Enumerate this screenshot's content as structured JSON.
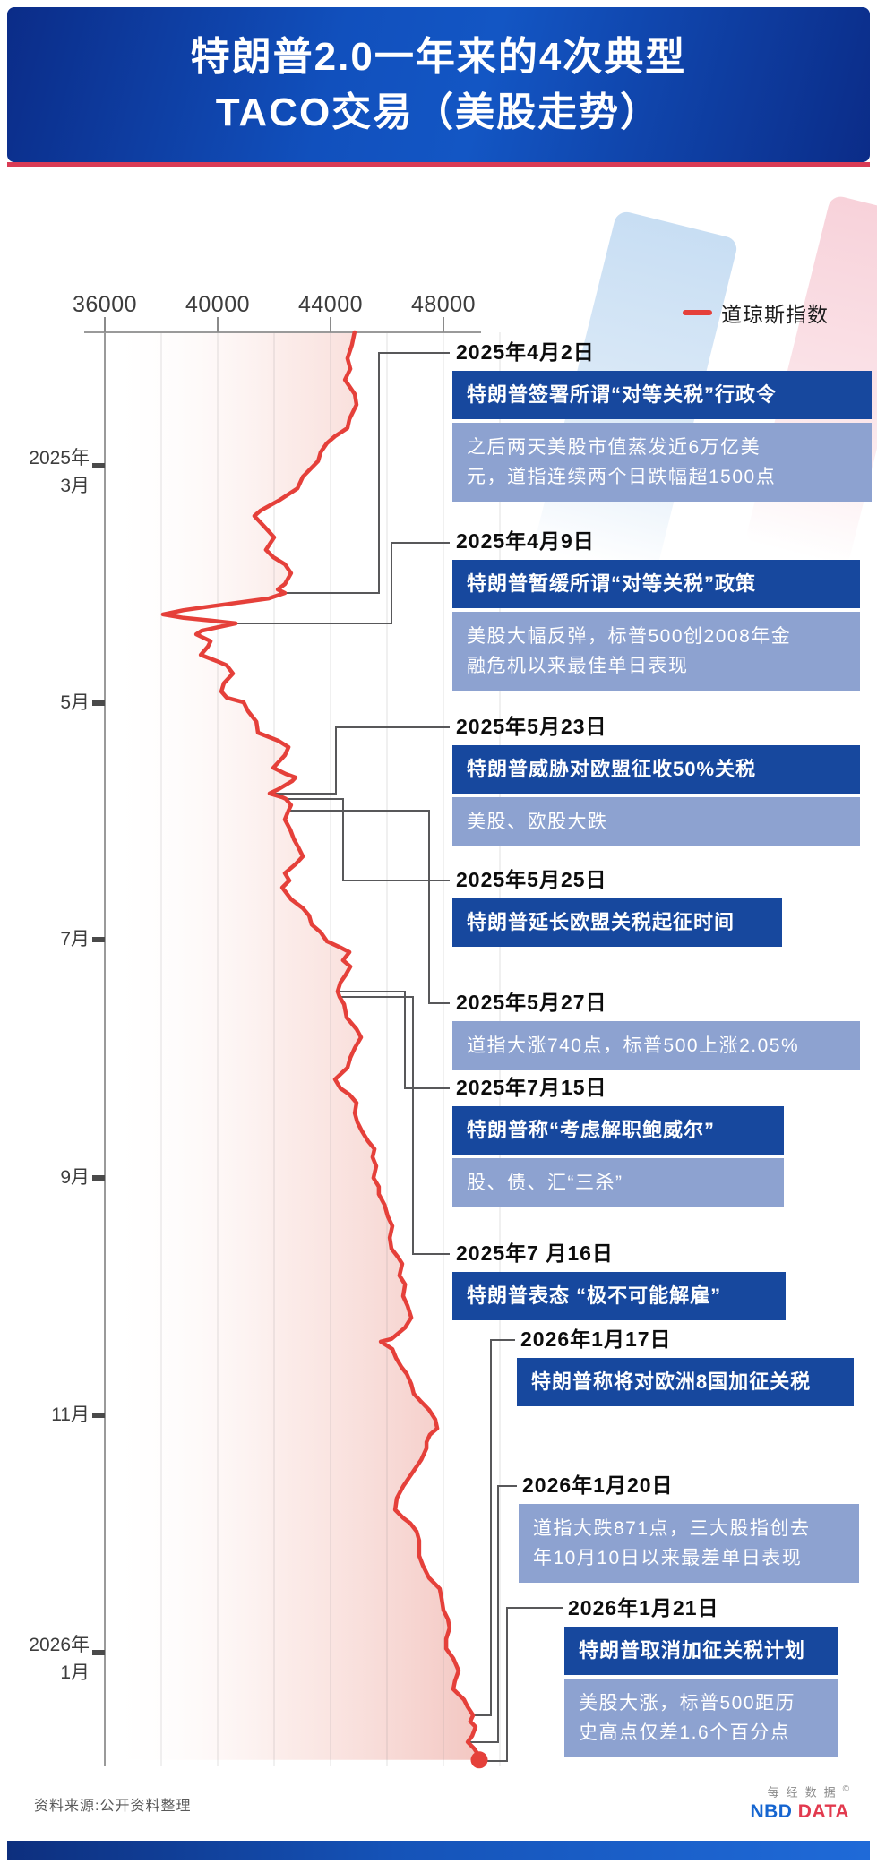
{
  "header": {
    "title_line1": "特朗普2.0一年来的4次典型",
    "title_line2": "TACO交易（美股走势）"
  },
  "legend": {
    "label": "道琼斯指数"
  },
  "axis": {
    "x_ticks": [
      "36000",
      "40000",
      "44000",
      "48000"
    ],
    "months": [
      "2025年\n3月",
      "5月",
      "7月",
      "9月",
      "11月",
      "2026年\n1月"
    ]
  },
  "annotations": [
    {
      "date": "2025年4月2日",
      "headline": "特朗普签署所谓“对等关税”行政令",
      "body": "之后两天美股市值蒸发近6万亿美\n元，道指连续两个日跌幅超1500点"
    },
    {
      "date": "2025年4月9日",
      "headline": "特朗普暂缓所谓“对等关税”政策",
      "body": "美股大幅反弹，标普500创2008年金\n融危机以来最佳单日表现"
    },
    {
      "date": "2025年5月23日",
      "headline": "特朗普威胁对欧盟征收50%关税",
      "body": "美股、欧股大跌"
    },
    {
      "date": "2025年5月25日",
      "headline": "特朗普延长欧盟关税起征时间"
    },
    {
      "date": "2025年5月27日",
      "body": "道指大涨740点，标普500上涨2.05%"
    },
    {
      "date": "2025年7月15日",
      "headline": "特朗普称“考虑解职鲍威尔”",
      "body": "股、债、汇“三杀”"
    },
    {
      "date": "2025年7 月16日",
      "headline": "特朗普表态 “极不可能解雇”"
    },
    {
      "date": "2026年1月17日",
      "headline": "特朗普称将对欧洲8国加征关税"
    },
    {
      "date": "2026年1月20日",
      "body": "道指大跌871点，三大股指创去\n年10月10日以来最差单日表现"
    },
    {
      "date": "2026年1月21日",
      "headline": "特朗普取消加征关税计划",
      "body": "美股大涨，标普500距历\n史高点仅差1.6个百分点"
    }
  ],
  "footer": {
    "source": "资料来源:公开资料整理",
    "logo_cn": "每经数据",
    "logo_mark": "©",
    "logo_en_blue": "NBD",
    "logo_en_red": "DATA"
  },
  "colors": {
    "header_blue": "#1150bd",
    "underline_red": "#d93b55",
    "headline_box_blue": "#17489e",
    "body_box_blue": "#8da2d0",
    "line_red": "#e5403a",
    "area_pink": "#f5c8c3",
    "logo_blue": "#1565d0",
    "logo_red": "#e23a4e"
  },
  "chart_data": {
    "type": "line",
    "title": "特朗普2.0一年来的4次典型TACO交易（美股走势）",
    "orientation": "vertical-time",
    "series_name": "道琼斯指数",
    "value_axis": {
      "ticks": [
        36000,
        40000,
        44000,
        48000
      ],
      "position": "top"
    },
    "time_axis": {
      "start": "2025-01-25",
      "unit": "days-from-start",
      "tick_labels": [
        "2025年3月",
        "5月",
        "7月",
        "9月",
        "11月",
        "2026年1月"
      ],
      "tick_days": [
        34,
        96,
        157,
        219,
        280,
        341
      ]
    },
    "points": [
      [
        0,
        44850
      ],
      [
        3.2,
        44760
      ],
      [
        6.7,
        44600
      ],
      [
        9.4,
        44700
      ],
      [
        12.2,
        44510
      ],
      [
        15.9,
        44860
      ],
      [
        18.6,
        44920
      ],
      [
        22.3,
        44670
      ],
      [
        24.6,
        44600
      ],
      [
        26.7,
        44160
      ],
      [
        28.5,
        43870
      ],
      [
        30.8,
        43650
      ],
      [
        33.1,
        43560
      ],
      [
        37.1,
        43020
      ],
      [
        40.1,
        42830
      ],
      [
        43,
        42220
      ],
      [
        45.8,
        41520
      ],
      [
        47.2,
        41300
      ],
      [
        49.9,
        41650
      ],
      [
        52.7,
        42000
      ],
      [
        55.9,
        41710
      ],
      [
        57.8,
        41970
      ],
      [
        59.6,
        42380
      ],
      [
        61.9,
        42600
      ],
      [
        64.7,
        42380
      ],
      [
        66.1,
        42130
      ],
      [
        67,
        42380
      ],
      [
        68.4,
        41810
      ],
      [
        70.4,
        39780
      ],
      [
        71.4,
        38790
      ],
      [
        72.5,
        38060
      ],
      [
        73.4,
        38790
      ],
      [
        74.1,
        39780
      ],
      [
        74.8,
        40640
      ],
      [
        76.7,
        39430
      ],
      [
        77.6,
        39240
      ],
      [
        79.4,
        39750
      ],
      [
        80.8,
        39650
      ],
      [
        82.9,
        39400
      ],
      [
        84.5,
        39970
      ],
      [
        85.6,
        40320
      ],
      [
        87.7,
        40540
      ],
      [
        90.2,
        40220
      ],
      [
        92.3,
        40130
      ],
      [
        93.9,
        40320
      ],
      [
        95.1,
        40920
      ],
      [
        97.4,
        41080
      ],
      [
        100.1,
        41370
      ],
      [
        102.9,
        41430
      ],
      [
        105,
        42160
      ],
      [
        106.6,
        42510
      ],
      [
        108.7,
        42380
      ],
      [
        111.9,
        41970
      ],
      [
        113.5,
        42410
      ],
      [
        114.4,
        42760
      ],
      [
        115.3,
        42640
      ],
      [
        117.4,
        42160
      ],
      [
        118.5,
        41840
      ],
      [
        119.5,
        42290
      ],
      [
        119.9,
        42410
      ],
      [
        121.5,
        42600
      ],
      [
        122.9,
        42510
      ],
      [
        125.2,
        42380
      ],
      [
        127.8,
        42570
      ],
      [
        130.3,
        42700
      ],
      [
        132.4,
        42860
      ],
      [
        134.7,
        43020
      ],
      [
        136.7,
        42760
      ],
      [
        139,
        42380
      ],
      [
        140.9,
        42540
      ],
      [
        142.7,
        42290
      ],
      [
        145.7,
        42600
      ],
      [
        148,
        43020
      ],
      [
        149.9,
        43240
      ],
      [
        152.2,
        43330
      ],
      [
        154.2,
        43650
      ],
      [
        156.5,
        43870
      ],
      [
        158.1,
        44350
      ],
      [
        159.3,
        44670
      ],
      [
        161.4,
        44440
      ],
      [
        163,
        44700
      ],
      [
        165.1,
        44540
      ],
      [
        167.1,
        44350
      ],
      [
        169.4,
        44250
      ],
      [
        170.8,
        44320
      ],
      [
        172.7,
        44480
      ],
      [
        176.1,
        44570
      ],
      [
        179.1,
        44920
      ],
      [
        181.2,
        45080
      ],
      [
        183.9,
        44860
      ],
      [
        186.4,
        44700
      ],
      [
        189,
        44600
      ],
      [
        192,
        44160
      ],
      [
        194.3,
        44350
      ],
      [
        195.9,
        44670
      ],
      [
        198,
        44920
      ],
      [
        200.7,
        44860
      ],
      [
        203,
        44950
      ],
      [
        205.3,
        45110
      ],
      [
        207.9,
        45330
      ],
      [
        209.9,
        45560
      ],
      [
        212,
        45490
      ],
      [
        214.3,
        45620
      ],
      [
        217.3,
        45520
      ],
      [
        219.6,
        45710
      ],
      [
        221.5,
        45710
      ],
      [
        224.2,
        45910
      ],
      [
        227.2,
        46030
      ],
      [
        229.7,
        46190
      ],
      [
        232.7,
        46100
      ],
      [
        235.5,
        46160
      ],
      [
        237.6,
        46380
      ],
      [
        239.4,
        46540
      ],
      [
        242.4,
        46440
      ],
      [
        244.7,
        46640
      ],
      [
        247.7,
        46570
      ],
      [
        250.2,
        46730
      ],
      [
        253.2,
        46860
      ],
      [
        255.8,
        46640
      ],
      [
        258.7,
        46160
      ],
      [
        259.4,
        45780
      ],
      [
        261.3,
        46190
      ],
      [
        263.6,
        46320
      ],
      [
        265.9,
        46510
      ],
      [
        267.7,
        46700
      ],
      [
        270.3,
        46860
      ],
      [
        272.8,
        46950
      ],
      [
        274.6,
        47180
      ],
      [
        276.9,
        47490
      ],
      [
        279.4,
        47710
      ],
      [
        281.7,
        47780
      ],
      [
        283.3,
        47520
      ],
      [
        285.2,
        47400
      ],
      [
        286.8,
        47400
      ],
      [
        289.8,
        47210
      ],
      [
        293.2,
        46890
      ],
      [
        296.6,
        46570
      ],
      [
        299.6,
        46350
      ],
      [
        302.6,
        46290
      ],
      [
        304.7,
        46570
      ],
      [
        306.1,
        46830
      ],
      [
        308.2,
        47050
      ],
      [
        310.5,
        47140
      ],
      [
        314.4,
        47140
      ],
      [
        316.9,
        47270
      ],
      [
        320.1,
        47490
      ],
      [
        322.9,
        47870
      ],
      [
        325.6,
        47940
      ],
      [
        328.4,
        48000
      ],
      [
        330.7,
        48160
      ],
      [
        333,
        48220
      ],
      [
        335.8,
        48100
      ],
      [
        338.3,
        48100
      ],
      [
        340.8,
        48350
      ],
      [
        344,
        48540
      ],
      [
        346.6,
        48410
      ],
      [
        348.7,
        48350
      ],
      [
        351.4,
        48730
      ],
      [
        353.3,
        48860
      ],
      [
        355.4,
        49050
      ],
      [
        357,
        48950
      ],
      [
        358.4,
        49140
      ],
      [
        360.7,
        49020
      ],
      [
        362.3,
        48860
      ],
      [
        363.9,
        49080
      ],
      [
        365.3,
        49210
      ],
      [
        366.9,
        49270
      ]
    ]
  }
}
